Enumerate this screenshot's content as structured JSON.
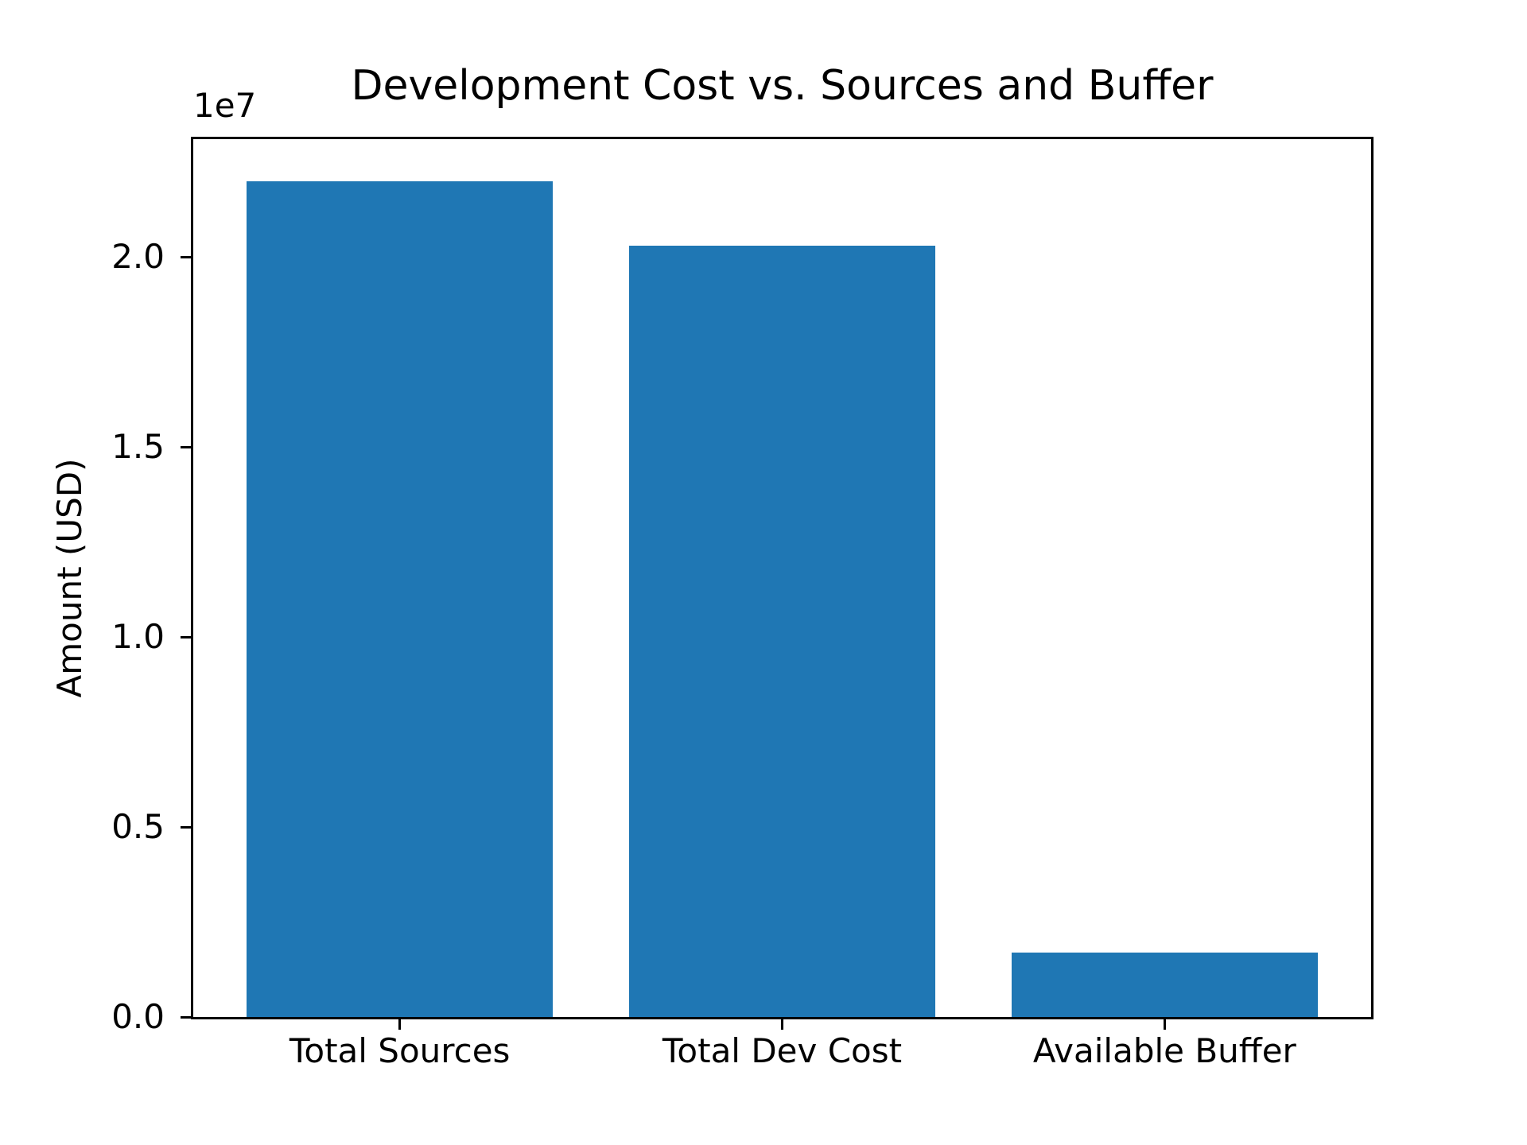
{
  "chart_data": {
    "type": "bar",
    "title": "Development Cost vs. Sources and Buffer",
    "xlabel": "",
    "ylabel": "Amount (USD)",
    "y_offset_label": "1e7",
    "categories": [
      "Total Sources",
      "Total Dev Cost",
      "Available Buffer"
    ],
    "values": [
      22000000,
      20300000,
      1700000
    ],
    "bar_color": "#1f77b4",
    "bar_width": 0.8,
    "xlim": [
      -0.54,
      2.54
    ],
    "ylim": [
      0,
      23100000
    ],
    "yticks": {
      "values": [
        0,
        5000000,
        10000000,
        15000000,
        20000000
      ],
      "labels": [
        "0.0",
        "0.5",
        "1.0",
        "1.5",
        "2.0"
      ]
    },
    "grid": false,
    "legend": null
  }
}
